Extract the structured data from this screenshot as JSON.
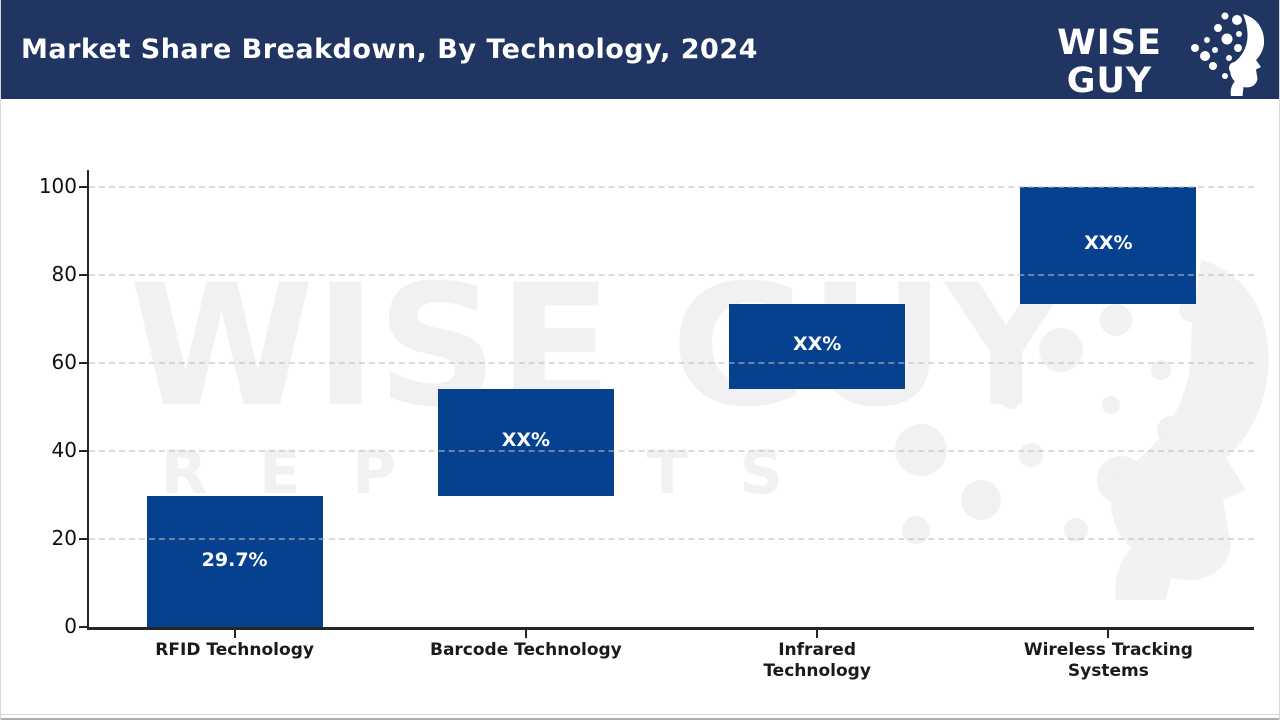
{
  "header": {
    "title": "Market Share Breakdown, By Technology, 2024",
    "logo": {
      "line1": "WISE GUY",
      "line2": "REPORTS"
    }
  },
  "watermark": {
    "line1": "WISE GUY",
    "line2": "REPORTS"
  },
  "chart_data": {
    "type": "bar",
    "subtype": "waterfall",
    "title": "Market Share Breakdown, By Technology, 2024",
    "categories": [
      "RFID Technology",
      "Barcode Technology",
      "Infrared\nTechnology",
      "Wireless Tracking\nSystems"
    ],
    "series": [
      {
        "name": "Market Share",
        "segments": [
          {
            "category": "RFID Technology",
            "start": 0,
            "end": 29.7,
            "label": "29.7%"
          },
          {
            "category": "Barcode Technology",
            "start": 29.7,
            "end": 54.2,
            "label": "XX%"
          },
          {
            "category": "Infrared Technology",
            "start": 54.2,
            "end": 73.5,
            "label": "XX%"
          },
          {
            "category": "Wireless Tracking Systems",
            "start": 73.5,
            "end": 100,
            "label": "XX%"
          }
        ]
      }
    ],
    "yticks": [
      0,
      20,
      40,
      60,
      80,
      100
    ],
    "ylim": [
      0,
      104
    ],
    "xlabel": "",
    "ylabel": "",
    "grid": true,
    "legend": "none",
    "bar_color": "#05418f",
    "bar_label_color": "#ffffff",
    "accent_color": "#213563"
  }
}
